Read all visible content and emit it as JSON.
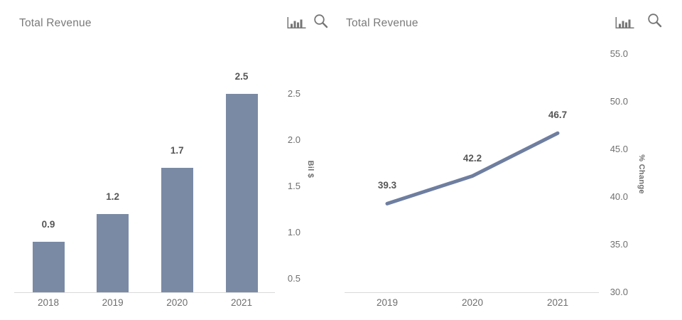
{
  "page": {
    "background": "#ffffff"
  },
  "toolbar": {
    "icons": [
      {
        "name": "bar-chart-icon"
      },
      {
        "name": "search-icon"
      }
    ]
  },
  "colors": {
    "bar_fill": "#7A8AA5",
    "line_stroke": "#6E7EA0",
    "axis_line": "#D9D9D9",
    "tick_text": "#6F6F6F",
    "value_text": "#565656",
    "title_text": "#7A7A7A",
    "icon": "#767676"
  },
  "chart_data": [
    {
      "type": "bar",
      "title": "Total Revenue",
      "xlabel": "",
      "ylabel": "Bil $",
      "categories": [
        "2018",
        "2019",
        "2020",
        "2021"
      ],
      "values": [
        0.9,
        1.2,
        1.7,
        2.5
      ],
      "value_labels": [
        "0.9",
        "1.2",
        "1.7",
        "2.5"
      ],
      "yticks": [
        0.5,
        1.0,
        1.5,
        2.0,
        2.5
      ],
      "ytick_labels": [
        "0.5",
        "1.0",
        "1.5",
        "2.0",
        "2.5"
      ],
      "ylim": [
        0.35,
        2.55
      ],
      "grid": false,
      "legend": "none",
      "bar_color": "#7A8AA5"
    },
    {
      "type": "line",
      "title": "Total Revenue",
      "xlabel": "",
      "ylabel": "% Change",
      "categories": [
        "2019",
        "2020",
        "2021"
      ],
      "values": [
        39.3,
        42.2,
        46.7
      ],
      "value_labels": [
        "39.3",
        "42.2",
        "46.7"
      ],
      "yticks": [
        30,
        35,
        40,
        45,
        50,
        55
      ],
      "ytick_labels": [
        "30.0",
        "35.0",
        "40.0",
        "45.0",
        "50.0",
        "55.0"
      ],
      "ylim": [
        30,
        55
      ],
      "grid": false,
      "legend": "none",
      "line_color": "#6E7EA0",
      "line_width": 5
    }
  ]
}
